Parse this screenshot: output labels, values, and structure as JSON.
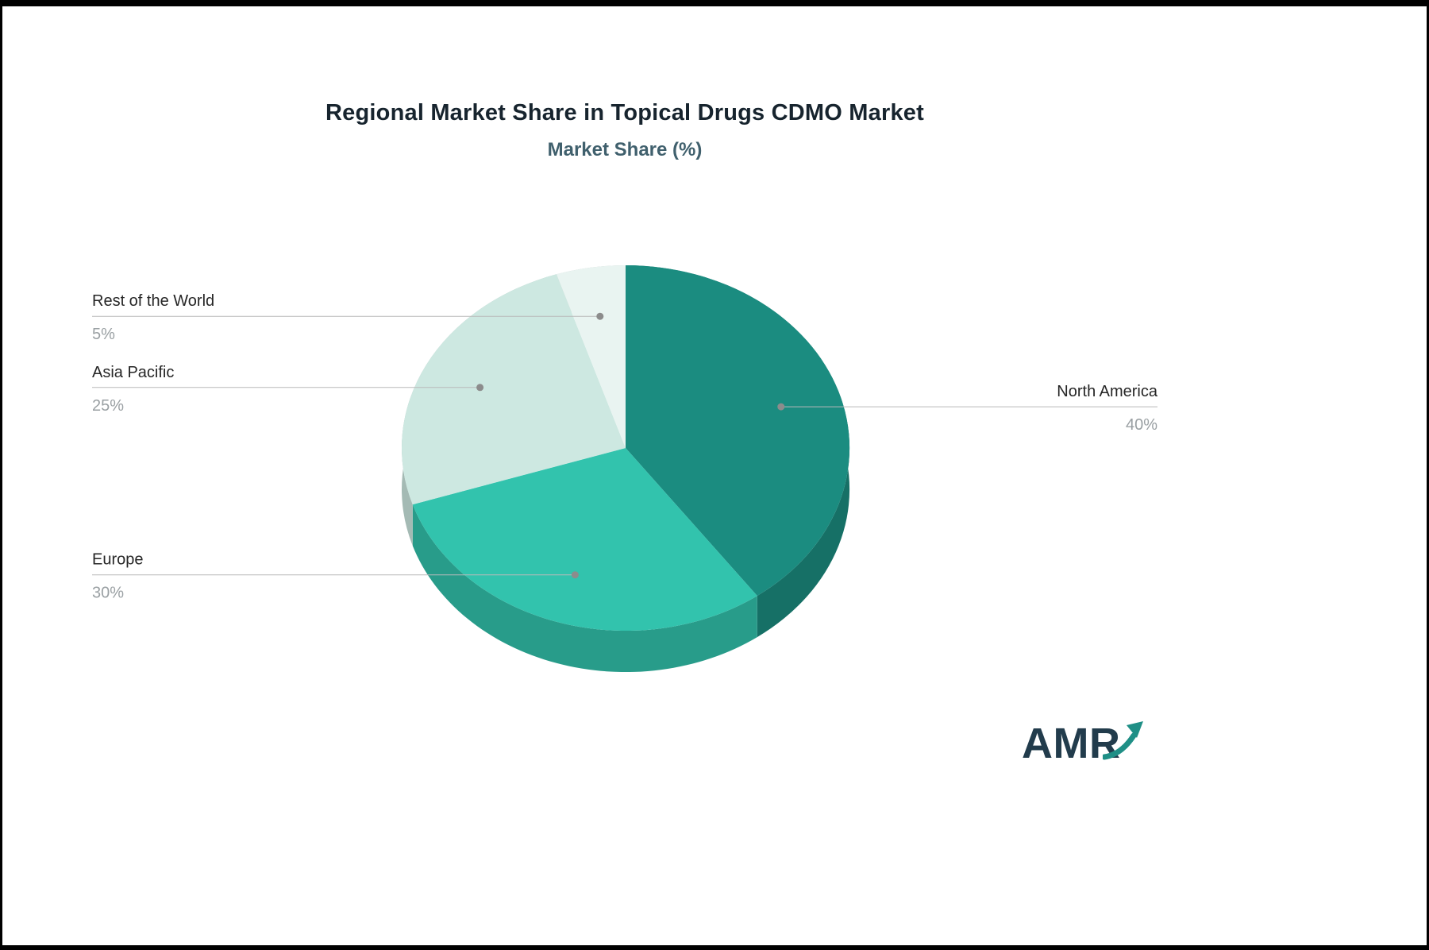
{
  "chart_data": {
    "type": "pie",
    "title": "Regional Market Share in Topical Drugs CDMO Market",
    "subtitle": "Market Share (%)",
    "style": "3d",
    "start_angle_deg": -90,
    "direction": "clockwise",
    "value_suffix": "%",
    "legend": "none",
    "slices": [
      {
        "label": "North America",
        "value": 40,
        "color": "#1b8c80"
      },
      {
        "label": "Europe",
        "value": 30,
        "color": "#32c3ad"
      },
      {
        "label": "Asia Pacific",
        "value": 25,
        "color": "#cde8e1"
      },
      {
        "label": "Rest of the World",
        "value": 5,
        "color": "#e9f4f1"
      }
    ],
    "label_text_color": "#262626",
    "value_text_color": "#9aa0a3",
    "leader_line_color": "#b9b9b9",
    "leader_dot_color": "#8c8c8c"
  },
  "logo": {
    "text": "AMR",
    "arrow_color": "#1f8f86"
  }
}
